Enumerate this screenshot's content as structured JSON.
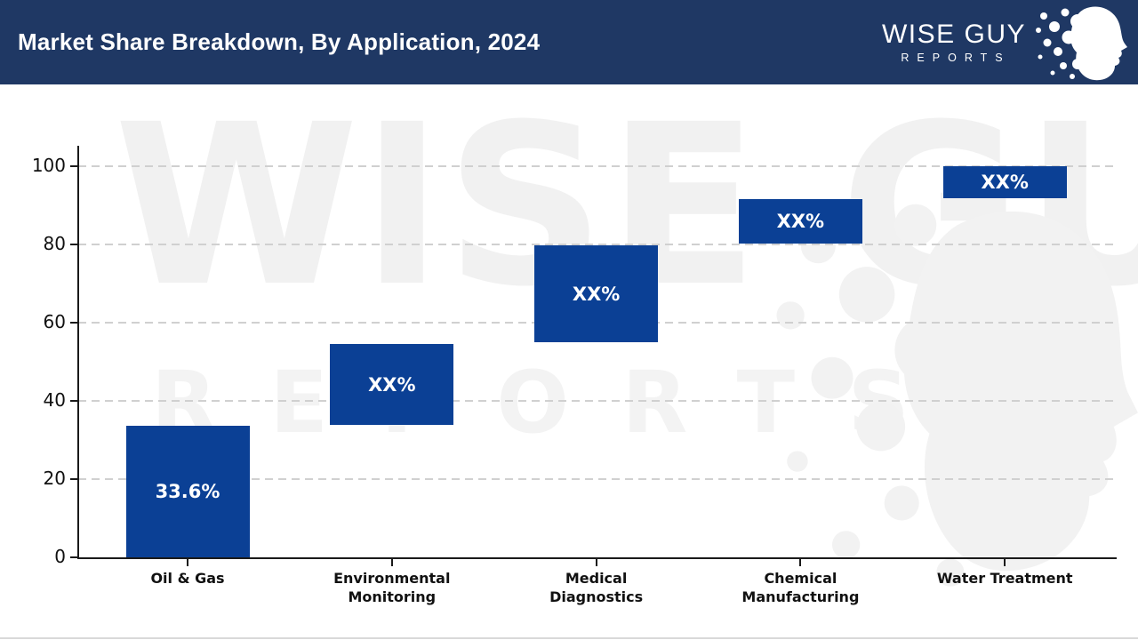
{
  "header": {
    "title": "Market Share Breakdown, By Application, 2024",
    "background_color": "#1F3864",
    "logo": {
      "line1": "WISE GUY",
      "line2": "REPORTS"
    }
  },
  "watermark": {
    "line1": "WISE GUY",
    "line2": "REPORTS"
  },
  "chart_data": {
    "type": "bar",
    "subtype": "floating-waterfall",
    "title": "Market Share Breakdown, By Application, 2024",
    "xlabel": "",
    "ylabel": "",
    "categories": [
      "Oil & Gas",
      "Environmental Monitoring",
      "Medical Diagnostics",
      "Chemical Manufacturing",
      "Water Treatment"
    ],
    "bars": [
      {
        "category": "Oil & Gas",
        "lines": [
          "Oil & Gas"
        ],
        "start": 0,
        "end": 33.6,
        "label": "33.6%"
      },
      {
        "category": "Environmental Monitoring",
        "lines": [
          "Environmental",
          "Monitoring"
        ],
        "start": 33.9,
        "end": 54.5,
        "label": "XX%"
      },
      {
        "category": "Medical Diagnostics",
        "lines": [
          "Medical",
          "Diagnostics"
        ],
        "start": 54.9,
        "end": 79.8,
        "label": "XX%"
      },
      {
        "category": "Chemical Manufacturing",
        "lines": [
          "Chemical",
          "Manufacturing"
        ],
        "start": 80.2,
        "end": 91.6,
        "label": "XX%"
      },
      {
        "category": "Water Treatment",
        "lines": [
          "Water Treatment"
        ],
        "start": 91.8,
        "end": 100,
        "label": "XX%"
      }
    ],
    "yticks": [
      0,
      20,
      40,
      60,
      80,
      100
    ],
    "ylim": [
      0,
      105
    ],
    "grid": true,
    "grid_style": "dashed",
    "legend": null,
    "bar_color": "#0B4095",
    "bar_label_color": "#FFFFFF",
    "axis_color": "#1a1a1a"
  }
}
